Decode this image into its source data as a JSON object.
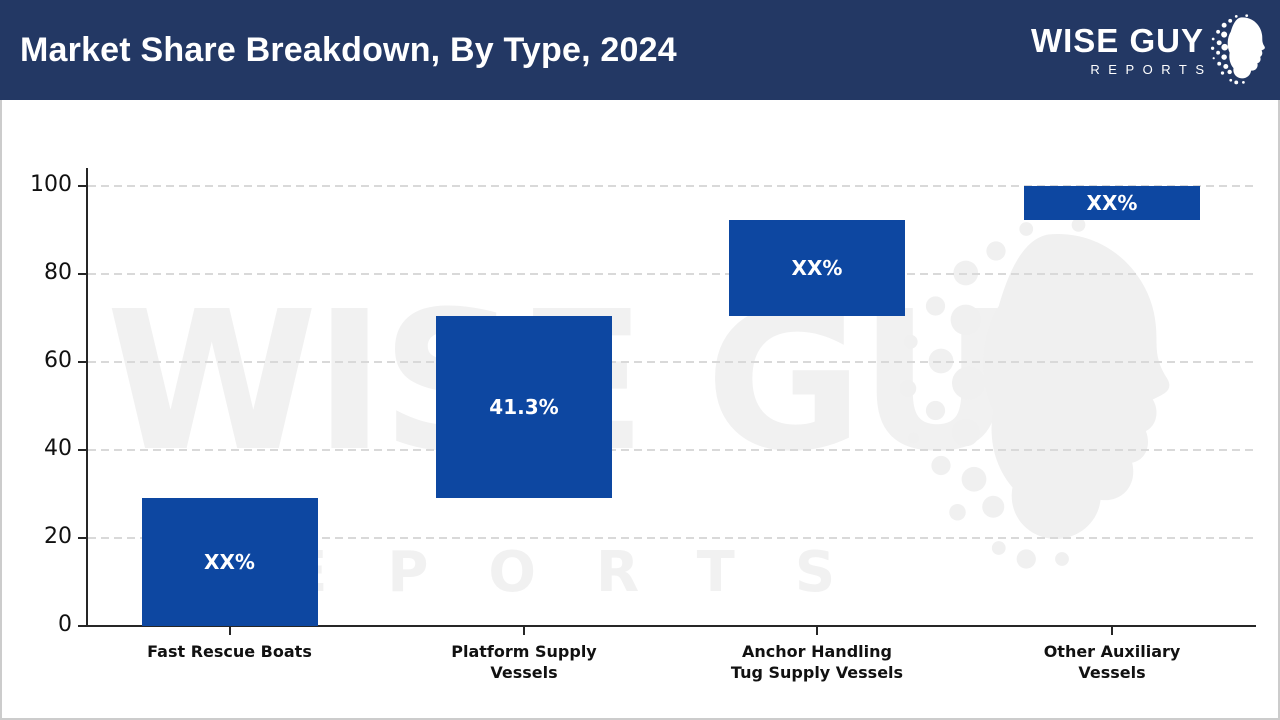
{
  "header": {
    "title": "Market Share Breakdown, By Type, 2024",
    "bg_color": "#233864",
    "logo": {
      "wordmark": "WISE GUY",
      "subtext": "REPORTS"
    }
  },
  "watermark": {
    "wordmark": "WISE GUY",
    "subtext": "REPORTS",
    "color": "#f1f1f1"
  },
  "chart_data": {
    "type": "bar",
    "subtype": "waterfall-stacked",
    "title": "Market Share Breakdown, By Type, 2024",
    "categories": [
      "Fast Rescue Boats",
      "Platform Supply Vessels",
      "Anchor Handling Tug Supply Vessels",
      "Other Auxiliary Vessels"
    ],
    "values": [
      29.2,
      41.3,
      21.8,
      7.7
    ],
    "segments": [
      {
        "category_lines": [
          "Fast Rescue Boats"
        ],
        "start": 0,
        "end": 29.2,
        "label": "XX%"
      },
      {
        "category_lines": [
          "Platform Supply",
          "Vessels"
        ],
        "start": 29.2,
        "end": 70.5,
        "label": "41.3%"
      },
      {
        "category_lines": [
          "Anchor Handling",
          "Tug Supply Vessels"
        ],
        "start": 70.5,
        "end": 92.3,
        "label": "XX%"
      },
      {
        "category_lines": [
          "Other Auxiliary",
          "Vessels"
        ],
        "start": 92.3,
        "end": 100,
        "label": "XX%"
      }
    ],
    "y_ticks": [
      0,
      20,
      40,
      60,
      80,
      100
    ],
    "ylim": [
      0,
      100
    ],
    "xlabel": "",
    "ylabel": "",
    "grid": "horizontal-dashed",
    "legend": "none",
    "colors": {
      "bar": "#0d47a1",
      "grid": "#d9d9d9",
      "axis": "#262626",
      "tick_text": "#111111",
      "bar_label": "#ffffff"
    }
  }
}
